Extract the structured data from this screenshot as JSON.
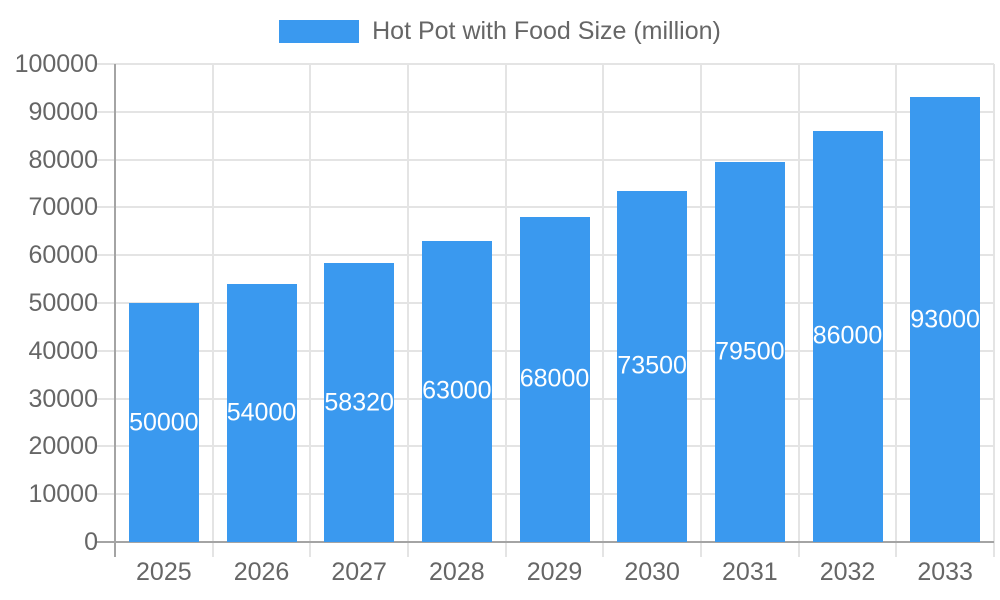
{
  "chart_data": {
    "type": "bar",
    "title": "Hot Pot with Food Size (million)",
    "legend": {
      "label": "Hot Pot with Food Size (million)",
      "position": "top"
    },
    "categories": [
      "2025",
      "2026",
      "2027",
      "2028",
      "2029",
      "2030",
      "2031",
      "2032",
      "2033"
    ],
    "values": [
      50000,
      54000,
      58320,
      63000,
      68000,
      73500,
      79500,
      86000,
      93000
    ],
    "value_labels": [
      "50000",
      "54000",
      "58320",
      "63000",
      "68000",
      "73500",
      "79500",
      "86000",
      "93000"
    ],
    "value_label_position": "inside-center",
    "xlabel": "",
    "ylabel": "",
    "ylim": [
      0,
      100000
    ],
    "ytick_step": 10000,
    "yticks": [
      "0",
      "10000",
      "20000",
      "30000",
      "40000",
      "50000",
      "60000",
      "70000",
      "80000",
      "90000",
      "100000"
    ],
    "grid": true,
    "colors": {
      "bar": "#3A99EF",
      "tick_text": "#666666",
      "value_label_text": "#FFFFFF",
      "grid_line": "#E4E4E4",
      "axis_line": "#A4A4A4",
      "background": "#FFFFFF"
    }
  }
}
